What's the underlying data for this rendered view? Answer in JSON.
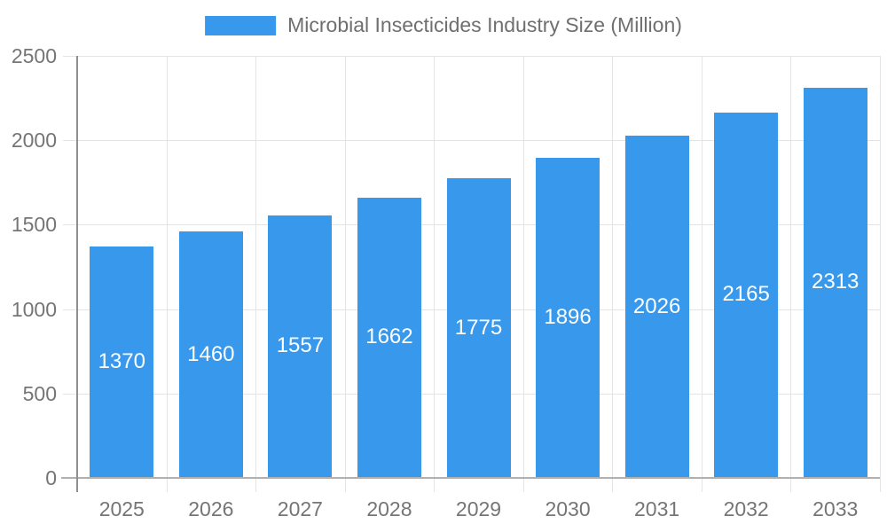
{
  "legend": {
    "label": "Microbial Insecticides Industry Size (Million)"
  },
  "chart_data": {
    "type": "bar",
    "title": "Microbial Insecticides Industry Size (Million)",
    "categories": [
      "2025",
      "2026",
      "2027",
      "2028",
      "2029",
      "2030",
      "2031",
      "2032",
      "2033"
    ],
    "values": [
      1370,
      1460,
      1557,
      1662,
      1775,
      1896,
      2026,
      2165,
      2313
    ],
    "series": [
      {
        "name": "Microbial Insecticides Industry Size (Million)",
        "values": [
          1370,
          1460,
          1557,
          1662,
          1775,
          1896,
          2026,
          2165,
          2313
        ]
      }
    ],
    "xlabel": "",
    "ylabel": "",
    "ylim": [
      0,
      2500
    ],
    "yticks": [
      0,
      500,
      1000,
      1500,
      2000,
      2500
    ],
    "grid": true,
    "legend_position": "top-center",
    "value_labels": "inside-center-white",
    "colors": {
      "bar": "#3898ec",
      "value_label": "#ffffff",
      "axis_text": "#757575",
      "title_text": "#6f6f6f",
      "grid": "#e4e4e4",
      "x_axis_line": "#b0b0b0",
      "y_axis_line": "#8f8f8f"
    }
  }
}
